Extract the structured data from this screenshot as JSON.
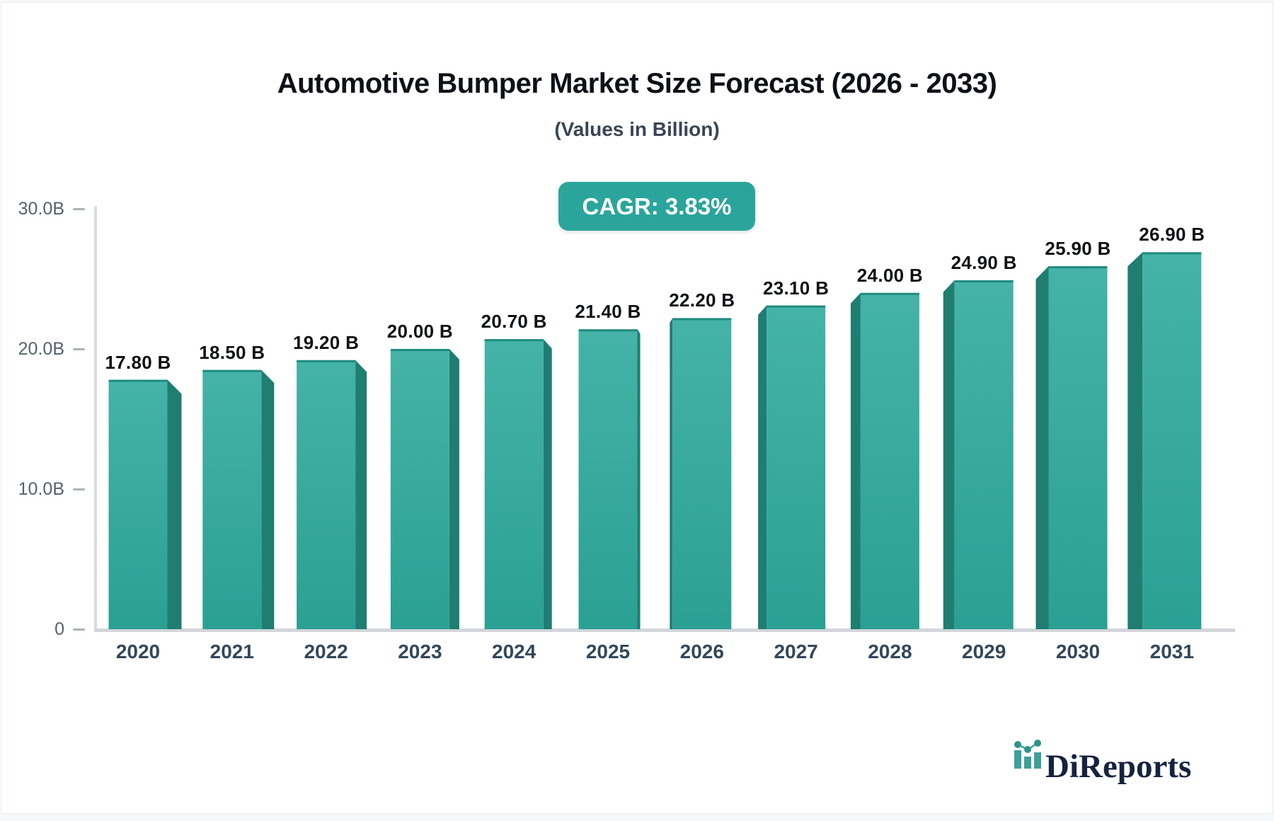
{
  "header": {
    "title": "Automotive Bumper Market Size Forecast (2026 - 2033)",
    "subtitle": "(Values in Billion)",
    "cagr_label": "CAGR: 3.83%"
  },
  "chart_data": {
    "type": "bar",
    "title": "Automotive Bumper Market Size Forecast (2026 - 2033)",
    "subtitle": "(Values in Billion)",
    "cagr_text": "CAGR: 3.83%",
    "categories": [
      "2020",
      "2021",
      "2022",
      "2023",
      "2024",
      "2025",
      "2026",
      "2027",
      "2028",
      "2029",
      "2030",
      "2031"
    ],
    "values": [
      17.8,
      18.5,
      19.2,
      20.0,
      20.7,
      21.4,
      22.2,
      23.1,
      24.0,
      24.9,
      25.9,
      26.9
    ],
    "bar_labels": [
      "17.80 B",
      "18.50 B",
      "19.20 B",
      "20.00 B",
      "20.70 B",
      "21.40 B",
      "22.20 B",
      "23.10 B",
      "24.00 B",
      "24.90 B",
      "25.90 B",
      "26.90 B"
    ],
    "xlabel": "",
    "ylabel": "",
    "ylim": [
      0,
      30
    ],
    "yticks": [
      {
        "v": 0,
        "label": "0"
      },
      {
        "v": 10,
        "label": "10.0B"
      },
      {
        "v": 20,
        "label": "20.0B"
      },
      {
        "v": 30,
        "label": "30.0B"
      }
    ],
    "grid": false,
    "legend": false,
    "bar_color_top": "#45b3a7",
    "bar_color_bottom": "#2aa093",
    "bar_side_color": "#1f7d72",
    "bar_top_edge_color": "#1f8c7f"
  },
  "branding": {
    "logo_text": "DiReports",
    "logo_text_color": "#16233f",
    "logo_icon_color": "#3da099"
  },
  "colors": {
    "badge_bg": "#2ba59b",
    "badge_text": "#ffffff",
    "axis_line": "#d9dcdf",
    "baseline": "#d2d6da",
    "tick": "#aab3bb",
    "y_label": "#55616e",
    "x_label": "#33475a",
    "value_label": "#0e1114",
    "page_bg": "#f6f8fa",
    "card_bg": "#ffffff"
  }
}
